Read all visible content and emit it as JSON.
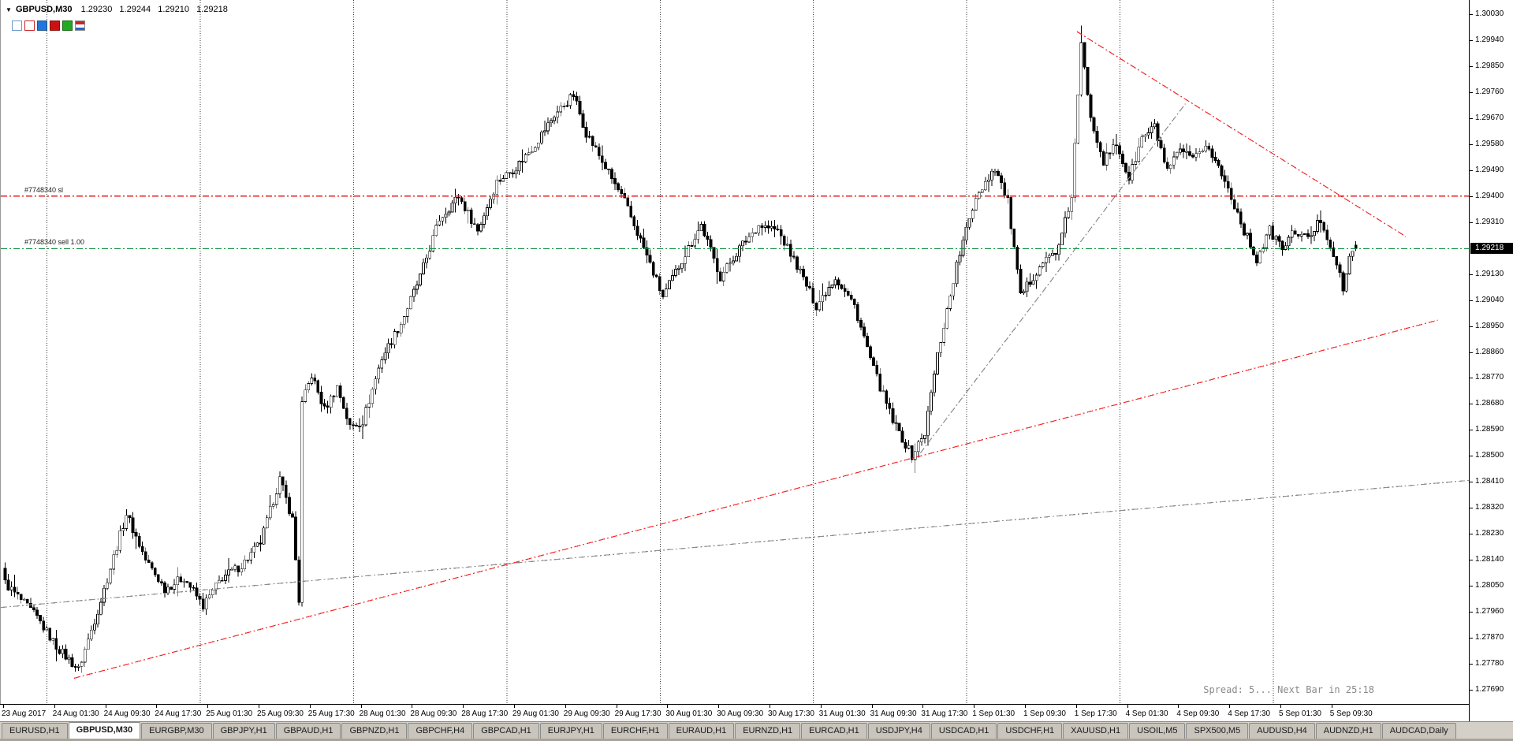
{
  "header": {
    "marker": "▼",
    "symbol": "GBPUSD,M30",
    "open": "1.29230",
    "high": "1.29244",
    "low": "1.29210",
    "close": "1.29218"
  },
  "toolbar": {
    "buttons": [
      {
        "name": "white-square",
        "fill": "#ffffff",
        "border": "#6699cc"
      },
      {
        "name": "red-outline-square",
        "fill": "#ffffff",
        "border": "#cc2222"
      },
      {
        "name": "blue-square",
        "fill": "#2277dd",
        "border": "#225588"
      },
      {
        "name": "red-square",
        "fill": "#cc1111",
        "border": "#881111"
      },
      {
        "name": "green-square",
        "fill": "#22aa22",
        "border": "#116611"
      },
      {
        "name": "striped-square",
        "stripes": [
          "#cc2222",
          "#ffffff",
          "#2266cc"
        ],
        "border": "#888888"
      }
    ]
  },
  "chart_data": {
    "type": "candlestick",
    "symbol": "GBPUSD",
    "timeframe": "M30",
    "price_min": 1.2769,
    "price_max": 1.3003,
    "grid_step": 0.0009,
    "bars": 424,
    "colors": {
      "bull": "#ffffff",
      "bear": "#000000",
      "outline": "#000000",
      "separator": "#3a3a3a"
    },
    "anchors": [
      [
        0,
        1.2806
      ],
      [
        10,
        1.2794
      ],
      [
        16,
        1.2784
      ],
      [
        23,
        1.2776
      ],
      [
        30,
        1.28
      ],
      [
        38,
        1.283
      ],
      [
        44,
        1.2814
      ],
      [
        50,
        1.2804
      ],
      [
        56,
        1.2808
      ],
      [
        62,
        1.2798
      ],
      [
        68,
        1.2808
      ],
      [
        74,
        1.2812
      ],
      [
        80,
        1.282
      ],
      [
        86,
        1.2842
      ],
      [
        90,
        1.2828
      ],
      [
        92,
        1.28
      ],
      [
        93,
        1.2868
      ],
      [
        96,
        1.2878
      ],
      [
        100,
        1.2866
      ],
      [
        104,
        1.2874
      ],
      [
        108,
        1.286
      ],
      [
        112,
        1.2862
      ],
      [
        118,
        1.2884
      ],
      [
        124,
        1.2896
      ],
      [
        130,
        1.2912
      ],
      [
        136,
        1.2932
      ],
      [
        142,
        1.294
      ],
      [
        148,
        1.2928
      ],
      [
        154,
        1.2945
      ],
      [
        160,
        1.295
      ],
      [
        166,
        1.2958
      ],
      [
        172,
        1.2968
      ],
      [
        178,
        1.2975
      ],
      [
        182,
        1.2962
      ],
      [
        188,
        1.295
      ],
      [
        194,
        1.2938
      ],
      [
        200,
        1.2922
      ],
      [
        206,
        1.2905
      ],
      [
        212,
        1.2918
      ],
      [
        218,
        1.293
      ],
      [
        224,
        1.2912
      ],
      [
        230,
        1.2922
      ],
      [
        236,
        1.293
      ],
      [
        242,
        1.2928
      ],
      [
        248,
        1.2916
      ],
      [
        254,
        1.2902
      ],
      [
        260,
        1.2912
      ],
      [
        266,
        1.2902
      ],
      [
        272,
        1.288
      ],
      [
        278,
        1.2862
      ],
      [
        284,
        1.285
      ],
      [
        288,
        1.2858
      ],
      [
        292,
        1.2885
      ],
      [
        298,
        1.2916
      ],
      [
        304,
        1.294
      ],
      [
        310,
        1.295
      ],
      [
        314,
        1.2938
      ],
      [
        318,
        1.2905
      ],
      [
        324,
        1.2916
      ],
      [
        330,
        1.2922
      ],
      [
        334,
        1.294
      ],
      [
        337,
        1.2992
      ],
      [
        340,
        1.2968
      ],
      [
        344,
        1.2952
      ],
      [
        348,
        1.2958
      ],
      [
        352,
        1.2946
      ],
      [
        356,
        1.296
      ],
      [
        360,
        1.2964
      ],
      [
        364,
        1.2948
      ],
      [
        368,
        1.2956
      ],
      [
        372,
        1.2952
      ],
      [
        376,
        1.2958
      ],
      [
        380,
        1.295
      ],
      [
        384,
        1.294
      ],
      [
        388,
        1.2928
      ],
      [
        392,
        1.2918
      ],
      [
        396,
        1.2928
      ],
      [
        400,
        1.2922
      ],
      [
        404,
        1.2928
      ],
      [
        408,
        1.2925
      ],
      [
        412,
        1.2932
      ],
      [
        416,
        1.292
      ],
      [
        419,
        1.2908
      ],
      [
        421,
        1.2918
      ],
      [
        423,
        1.29218
      ]
    ],
    "specials": {
      "23": {
        "low": 1.27755
      },
      "178": {
        "high": 1.29765
      },
      "337": {
        "high": 1.2999
      },
      "423": {
        "open": 1.2923,
        "high": 1.29244,
        "low": 1.2921,
        "close": 1.29218
      }
    },
    "day_separator_bars": [
      13,
      61,
      109,
      157,
      205,
      253,
      301,
      349,
      397
    ],
    "time_labels": [
      "23 Aug 2017",
      "24 Aug 01:30",
      "24 Aug 09:30",
      "24 Aug 17:30",
      "25 Aug 01:30",
      "25 Aug 09:30",
      "25 Aug 17:30",
      "28 Aug 01:30",
      "28 Aug 09:30",
      "28 Aug 17:30",
      "29 Aug 01:30",
      "29 Aug 09:30",
      "29 Aug 17:30",
      "30 Aug 01:30",
      "30 Aug 09:30",
      "30 Aug 17:30",
      "31 Aug 01:30",
      "31 Aug 09:30",
      "31 Aug 17:30",
      "1 Sep 01:30",
      "1 Sep 09:30",
      "1 Sep 17:30",
      "4 Sep 01:30",
      "4 Sep 09:30",
      "4 Sep 17:30",
      "5 Sep 01:30",
      "5 Sep 09:30"
    ],
    "price_labels": [
      "1.30030",
      "1.29940",
      "1.29850",
      "1.29760",
      "1.29670",
      "1.29580",
      "1.29490",
      "1.29400",
      "1.29310",
      "1.29130",
      "1.29040",
      "1.28950",
      "1.28860",
      "1.28770",
      "1.28680",
      "1.28590",
      "1.28500",
      "1.28410",
      "1.28320",
      "1.28230",
      "1.28140",
      "1.28050",
      "1.27960",
      "1.27870",
      "1.27780",
      "1.27690"
    ],
    "current_price": "1.29218",
    "orders": [
      {
        "label": "#7748340 sl",
        "price": 1.294,
        "color": "#e02020"
      },
      {
        "label": "#7748340 sell 1.00",
        "price": 1.29218,
        "color": "#0a8f3c"
      }
    ],
    "trendlines": [
      {
        "name": "ascending-support-red",
        "color": "#f42a2a",
        "b1": 22,
        "p1": 1.2773,
        "b2": 449,
        "p2": 1.2897
      },
      {
        "name": "descending-resistance-red",
        "color": "#f42a2a",
        "b1": 336,
        "p1": 1.2997,
        "b2": 439,
        "p2": 1.2926
      },
      {
        "name": "long-gray-channel",
        "color": "#8c8c8c",
        "b1": -1,
        "p1": 1.27975,
        "b2": 469,
        "p2": 1.28425
      },
      {
        "name": "steep-gray-trend",
        "color": "#8c8c8c",
        "b1": 287,
        "p1": 1.2851,
        "b2": 370,
        "p2": 1.2972
      }
    ],
    "status_text": "Spread: 5... Next Bar in 25:18"
  },
  "tabs": {
    "items": [
      {
        "label": "EURUSD,H1",
        "active": false
      },
      {
        "label": "GBPUSD,M30",
        "active": true
      },
      {
        "label": "EURGBP,M30",
        "active": false
      },
      {
        "label": "GBPJPY,H1",
        "active": false
      },
      {
        "label": "GBPAUD,H1",
        "active": false
      },
      {
        "label": "GBPNZD,H1",
        "active": false
      },
      {
        "label": "GBPCHF,H4",
        "active": false
      },
      {
        "label": "GBPCAD,H1",
        "active": false
      },
      {
        "label": "EURJPY,H1",
        "active": false
      },
      {
        "label": "EURCHF,H1",
        "active": false
      },
      {
        "label": "EURAUD,H1",
        "active": false
      },
      {
        "label": "EURNZD,H1",
        "active": false
      },
      {
        "label": "EURCAD,H1",
        "active": false
      },
      {
        "label": "USDJPY,H4",
        "active": false
      },
      {
        "label": "USDCAD,H1",
        "active": false
      },
      {
        "label": "USDCHF,H1",
        "active": false
      },
      {
        "label": "XAUUSD,H1",
        "active": false
      },
      {
        "label": "USOIL,M5",
        "active": false
      },
      {
        "label": "SPX500,M5",
        "active": false
      },
      {
        "label": "AUDUSD,H4",
        "active": false
      },
      {
        "label": "AUDNZD,H1",
        "active": false
      },
      {
        "label": "AUDCAD,Daily",
        "active": false
      }
    ]
  }
}
